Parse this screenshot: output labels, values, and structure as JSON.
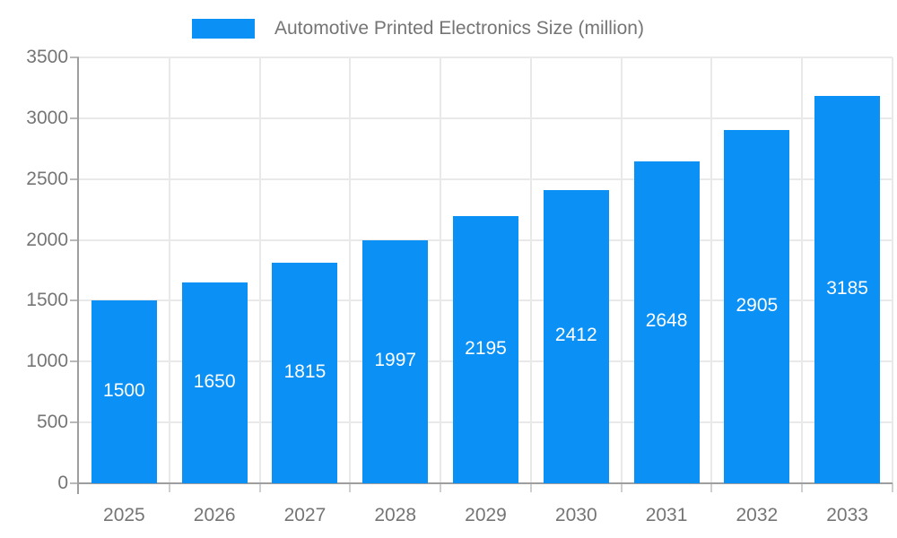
{
  "chart_data": {
    "type": "bar",
    "title": "Automotive Printed Electronics Size (million)",
    "legend_position": "top",
    "categories": [
      "2025",
      "2026",
      "2027",
      "2028",
      "2029",
      "2030",
      "2031",
      "2032",
      "2033"
    ],
    "series": [
      {
        "name": "Automotive Printed Electronics Size (million)",
        "values": [
          1500,
          1650,
          1815,
          1997,
          2195,
          2412,
          2648,
          2905,
          3185
        ],
        "color": "#0B90F5"
      }
    ],
    "xlabel": "",
    "ylabel": "",
    "ylim": [
      0,
      3500
    ],
    "yticks": [
      0,
      500,
      1000,
      1500,
      2000,
      2500,
      3000,
      3500
    ],
    "grid": true,
    "vertical_grid": true,
    "bar_labels": "centered-inside",
    "bar_label_color": "#ffffff"
  },
  "colors": {
    "bar": "#0B90F5",
    "axis_line": "#9e9e9e",
    "gridline": "#e9e9e9",
    "y_tick_mark": "#b9b9b9",
    "x_tick_mark": "#cfcfcf",
    "tick_label_text": "#757575",
    "legend_text": "#757575",
    "background": "#ffffff"
  }
}
